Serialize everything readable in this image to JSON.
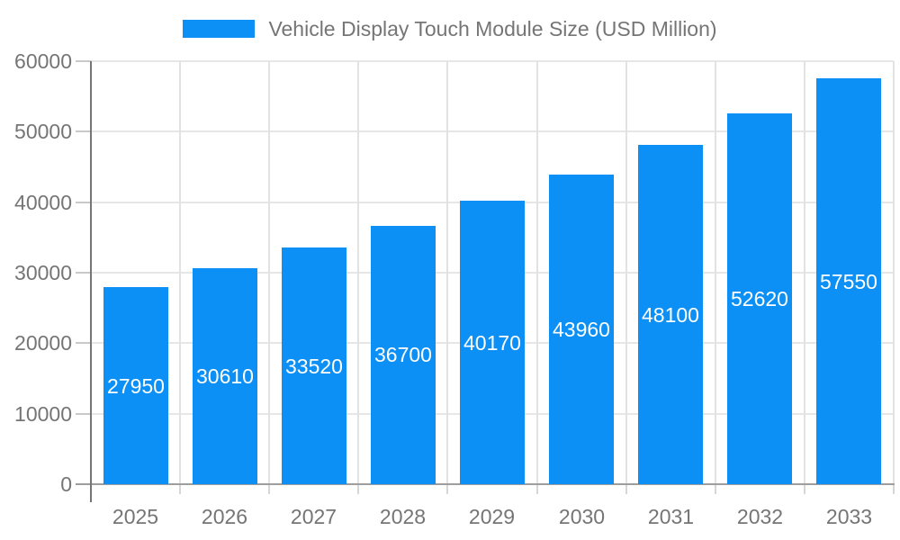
{
  "legend": {
    "label": "Vehicle Display Touch Module Size (USD Million)"
  },
  "chart_data": {
    "type": "bar",
    "title": "Vehicle Display Touch Module Size (USD Million)",
    "categories": [
      "2025",
      "2026",
      "2027",
      "2028",
      "2029",
      "2030",
      "2031",
      "2032",
      "2033"
    ],
    "values": [
      27950,
      30610,
      33520,
      36700,
      40170,
      43960,
      48100,
      52620,
      57550
    ],
    "xlabel": "",
    "ylabel": "",
    "ylim": [
      0,
      60000
    ],
    "y_ticks": [
      0,
      10000,
      20000,
      30000,
      40000,
      50000,
      60000
    ],
    "grid": true,
    "legend_position": "top-center",
    "bar_color": "#0c90f5",
    "bar_label_color": "#ffffff",
    "axis_text_color": "#757575"
  }
}
